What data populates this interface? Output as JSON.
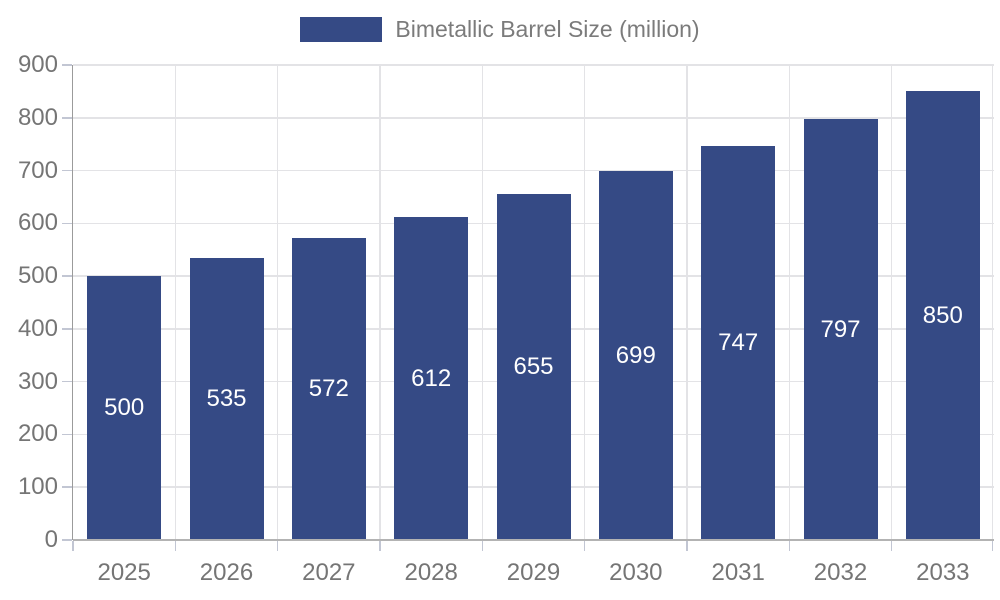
{
  "chart_data": {
    "type": "bar",
    "title": "",
    "legend": {
      "label": "Bimetallic Barrel Size (million)"
    },
    "categories": [
      "2025",
      "2026",
      "2027",
      "2028",
      "2029",
      "2030",
      "2031",
      "2032",
      "2033"
    ],
    "series": [
      {
        "name": "Bimetallic Barrel Size (million)",
        "values": [
          500,
          535,
          572,
          612,
          655,
          699,
          747,
          797,
          850
        ]
      }
    ],
    "xlabel": "",
    "ylabel": "",
    "ylim": [
      0,
      900
    ],
    "ytick_step": 100,
    "ytick_labels": [
      "0",
      "100",
      "200",
      "300",
      "400",
      "500",
      "600",
      "700",
      "800",
      "900"
    ],
    "grid": true,
    "legend_position": "top-center",
    "bar_labels_visible": true,
    "colors": {
      "bar": "#354a85",
      "bar_label": "#ffffff",
      "axis_text": "#757575",
      "legend_text": "#7b7b7b",
      "grid_line": "#e3e3e6",
      "y_axis_line": "#9b9b9b",
      "x_axis_line": "#b3b3b3",
      "tick": "#c2c6d3",
      "background": "#ffffff"
    }
  }
}
